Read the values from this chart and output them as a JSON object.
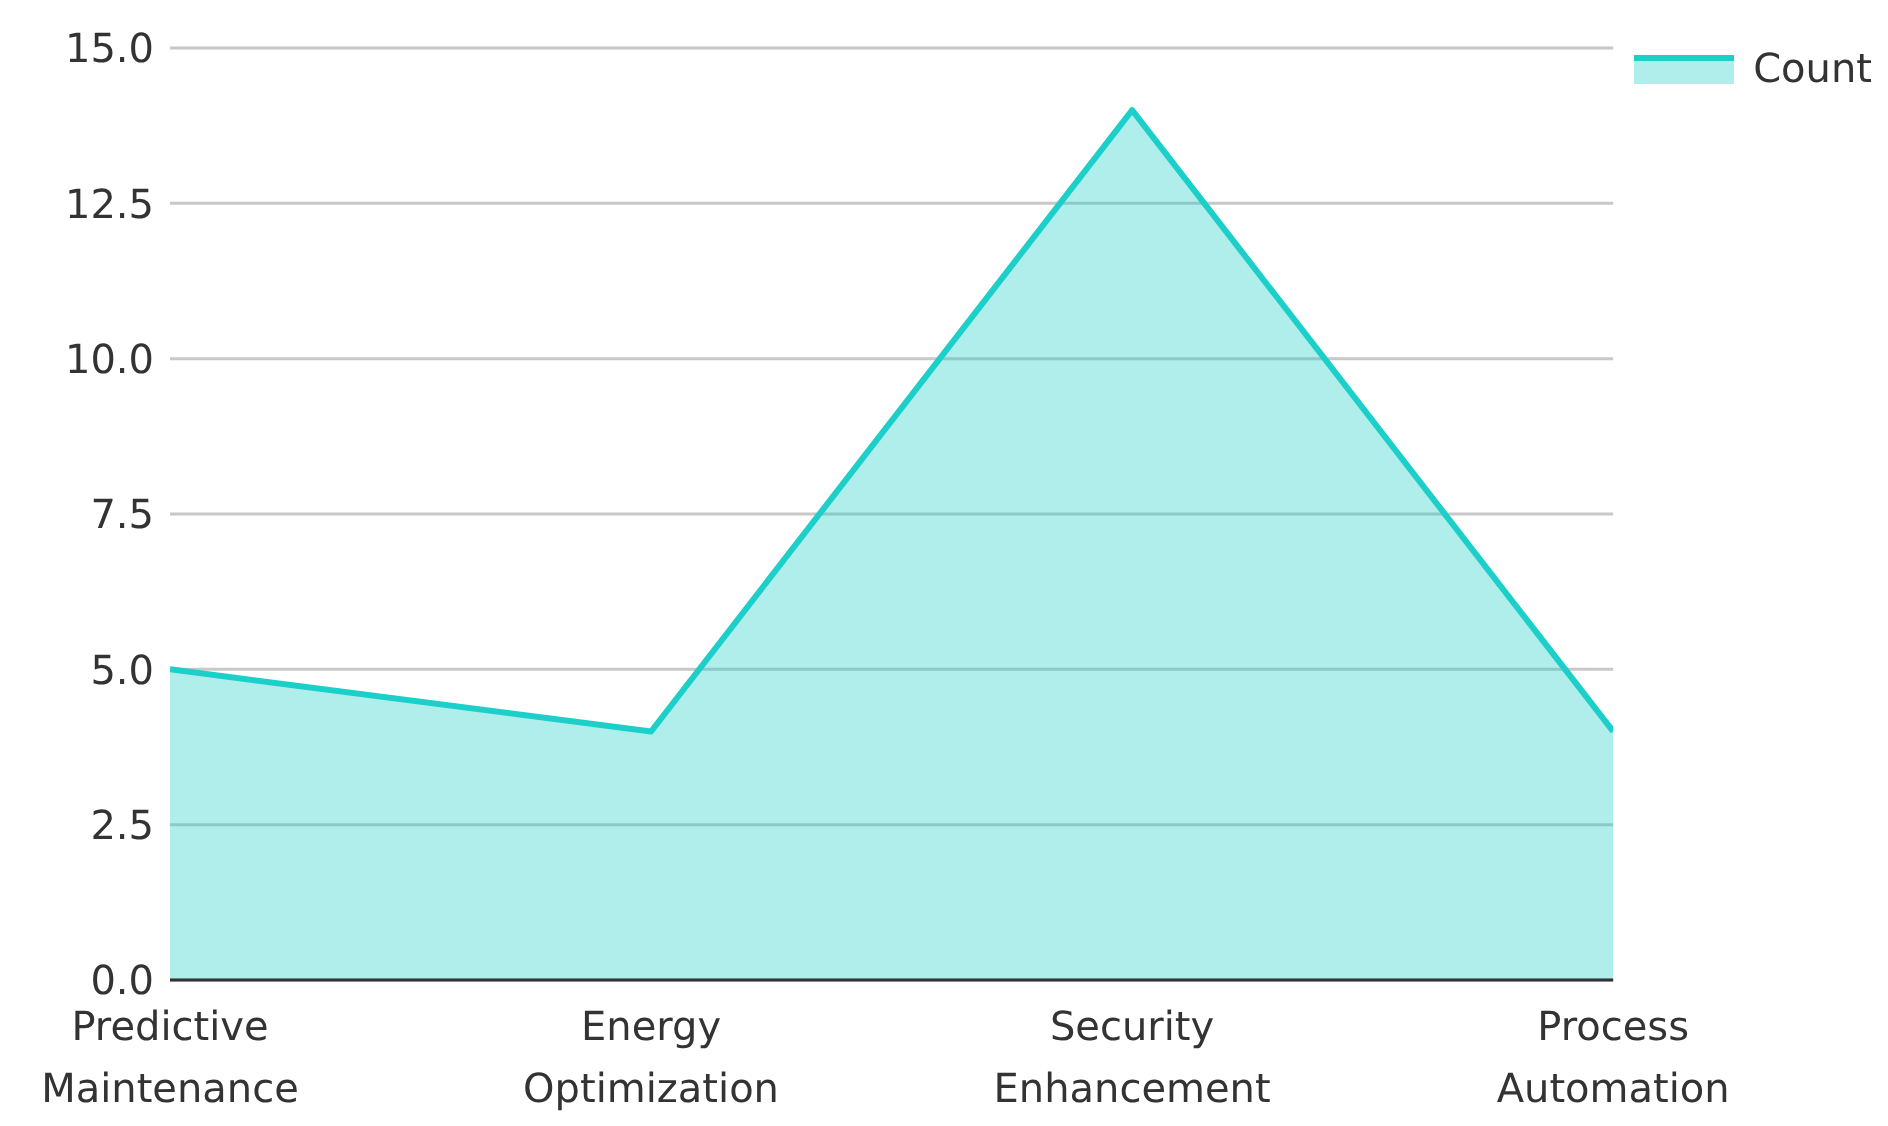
{
  "chart_data": {
    "type": "area",
    "categories": [
      "Predictive Maintenance",
      "Energy Optimization",
      "Security Enhancement",
      "Process Automation"
    ],
    "series": [
      {
        "name": "Count",
        "color": "#1ccfc9",
        "values": [
          5,
          4,
          14,
          4
        ]
      }
    ],
    "ylim": [
      0,
      15
    ],
    "yticks": [
      {
        "value": 0,
        "label": "0.0"
      },
      {
        "value": 2.5,
        "label": "2.5"
      },
      {
        "value": 5,
        "label": "5.0"
      },
      {
        "value": 7.5,
        "label": "7.5"
      },
      {
        "value": 10,
        "label": "10.0"
      },
      {
        "value": 12.5,
        "label": "12.5"
      },
      {
        "value": 15,
        "label": "15.0"
      }
    ],
    "grid": "y",
    "legend": "top right"
  }
}
